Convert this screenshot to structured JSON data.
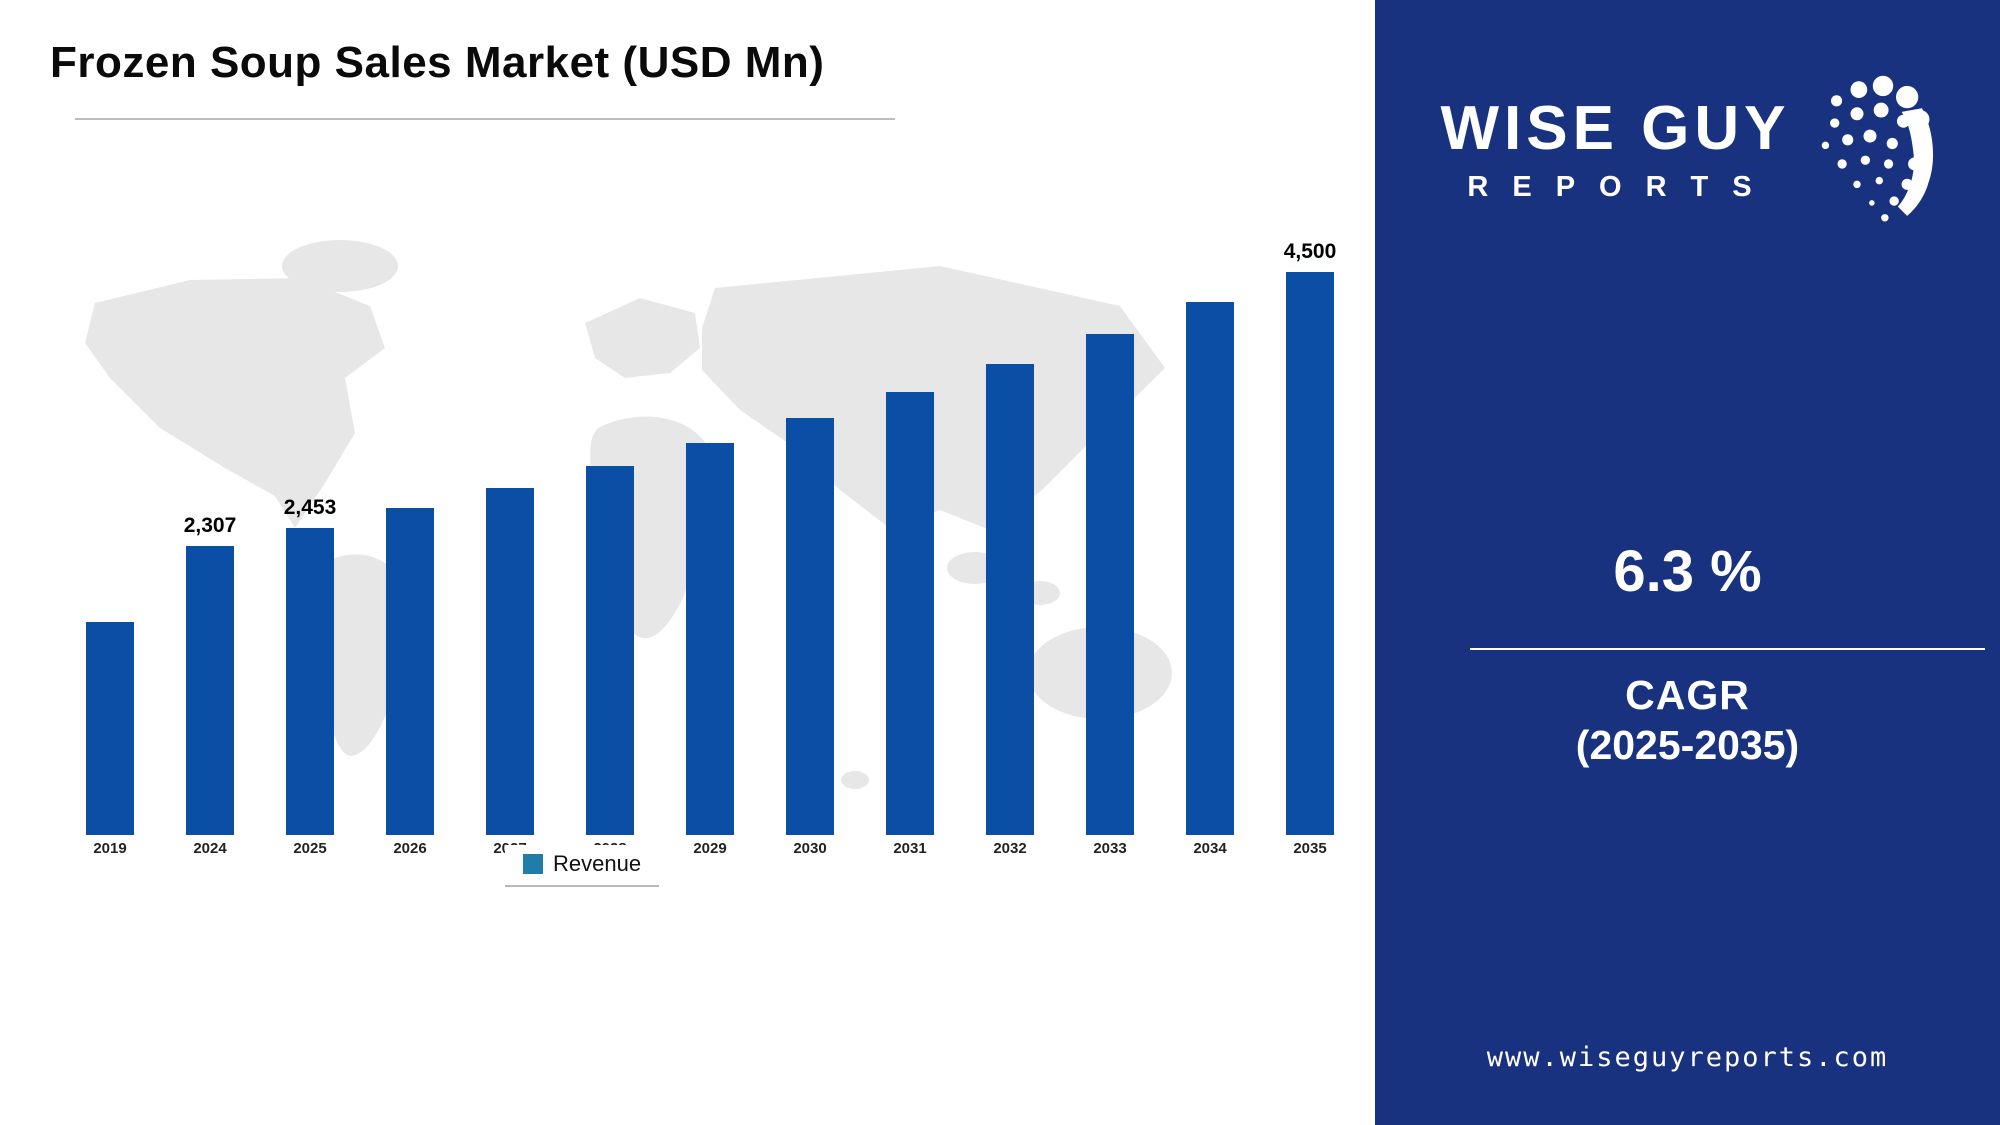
{
  "page": {
    "title": "Frozen Soup Sales Market (USD Mn)"
  },
  "chart_data": {
    "type": "bar",
    "title": "Frozen Soup Sales Market (USD Mn)",
    "categories": [
      "2019",
      "2024",
      "2025",
      "2026",
      "2027",
      "2028",
      "2029",
      "2030",
      "2031",
      "2032",
      "2033",
      "2034",
      "2035"
    ],
    "values": [
      1700,
      2307,
      2453,
      2608,
      2772,
      2947,
      3132,
      3330,
      3540,
      3763,
      4000,
      4252,
      4500
    ],
    "data_labels": {
      "2024": "2,307",
      "2025": "2,453",
      "2035": "4,500"
    },
    "legend_entries": [
      "Revenue"
    ],
    "legend_position": "bottom",
    "grid": false,
    "ylim": [
      0,
      4750
    ],
    "bar_color": "#0b4ea5"
  },
  "legend": {
    "label": "Revenue",
    "swatch_color": "#1f7ea9"
  },
  "sidebar": {
    "logo_line1": "WISE GUY",
    "logo_line2": "REPORTS",
    "cagr_value": "6.3 %",
    "cagr_label": "CAGR",
    "cagr_range": "(2025-2035)",
    "website": "www.wiseguyreports.com",
    "bg_color": "#19327f"
  }
}
